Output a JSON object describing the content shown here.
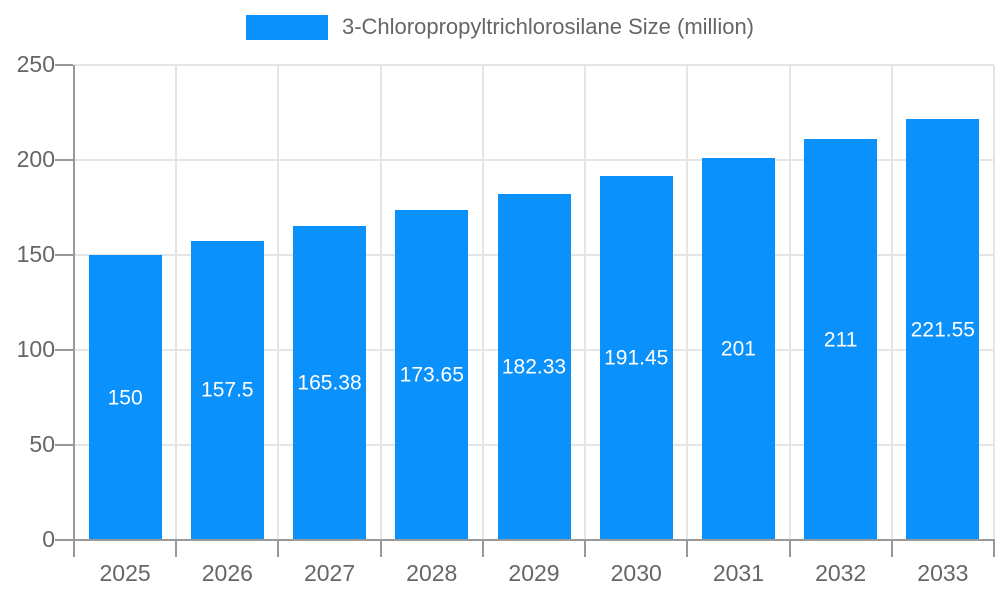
{
  "chart_data": {
    "type": "bar",
    "legend": "3-Chloropropyltrichlorosilane Size (million)",
    "categories": [
      "2025",
      "2026",
      "2027",
      "2028",
      "2029",
      "2030",
      "2031",
      "2032",
      "2033"
    ],
    "values": [
      150,
      157.5,
      165.38,
      173.65,
      182.33,
      191.45,
      201,
      211,
      221.55
    ],
    "value_labels": [
      "150",
      "157.5",
      "165.38",
      "173.65",
      "182.33",
      "191.45",
      "201",
      "211",
      "221.55"
    ],
    "y_tick_labels": [
      "0",
      "50",
      "100",
      "150",
      "200",
      "250"
    ],
    "y_ticks": [
      0,
      50,
      100,
      150,
      200,
      250
    ],
    "ylim": [
      0,
      250
    ],
    "xlabel": "",
    "ylabel": "",
    "grid": true,
    "legend_position": "top-center",
    "value_label_position": "inside-center",
    "colors": {
      "bar": "#0a91fb",
      "value_label": "#ffffff",
      "axis_label": "#666666",
      "legend_text": "#666666",
      "axis_line": "#999999",
      "grid_line": "#e5e5e5",
      "background": "#ffffff"
    }
  }
}
